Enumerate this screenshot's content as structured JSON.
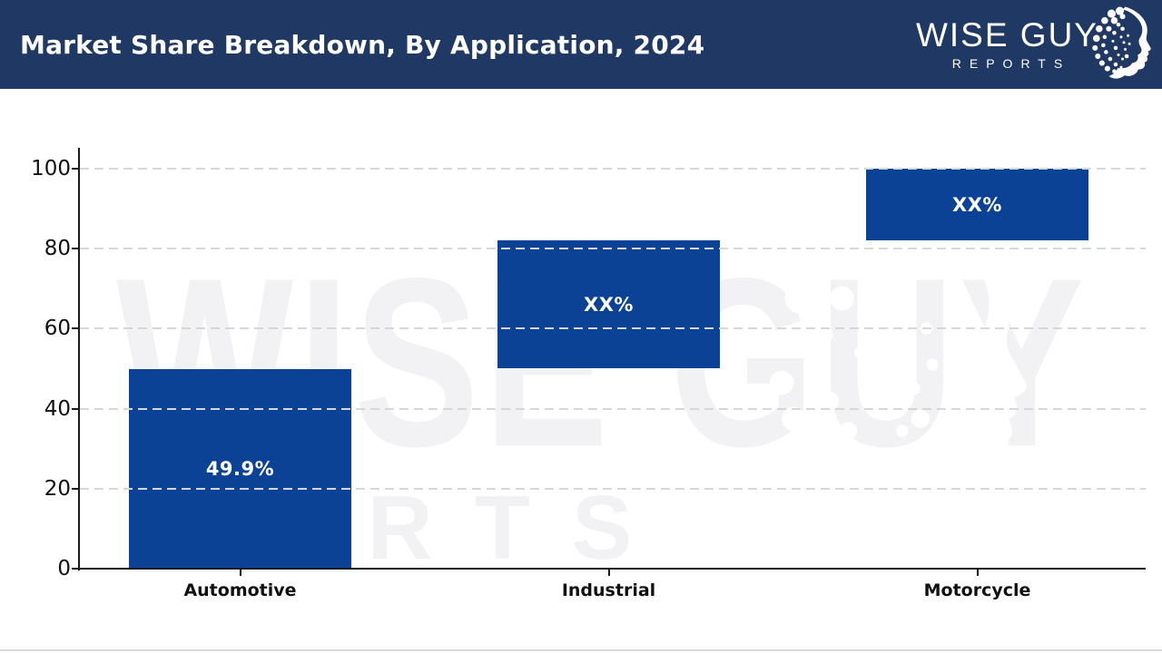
{
  "header": {
    "title": "Market Share Breakdown, By Application, 2024",
    "logo": {
      "name": "WISE GUY",
      "tagline": "REPORTS"
    }
  },
  "watermark": {
    "name": "WISE GUY",
    "tagline": "PORTS"
  },
  "colors": {
    "header_bg": "#1F3864",
    "bar": "#0B4296",
    "grid": "#D7D7D7",
    "axis": "#1A1A1A",
    "bar_label": "#FFFFFF",
    "watermark": "#F2F2F4"
  },
  "chart_data": {
    "type": "bar",
    "variant": "floating-segment-waterfall",
    "title": "Market Share Breakdown, By Application, 2024",
    "categories": [
      "Automotive",
      "Industrial",
      "Motorcycle"
    ],
    "segments": [
      {
        "category": "Automotive",
        "start": 0,
        "end": 49.9,
        "value_label": "49.9%"
      },
      {
        "category": "Industrial",
        "start": 50,
        "end": 82,
        "value_label": "XX%"
      },
      {
        "category": "Motorcycle",
        "start": 82,
        "end": 100,
        "value_label": "XX%"
      }
    ],
    "yticks": [
      0,
      20,
      40,
      60,
      80,
      100
    ],
    "ylim": [
      0,
      105
    ],
    "xlabel": "",
    "ylabel": "",
    "grid": "dashed-horizontal",
    "legend": "none",
    "bar_color": "#0B4296",
    "label_color": "#FFFFFF"
  }
}
